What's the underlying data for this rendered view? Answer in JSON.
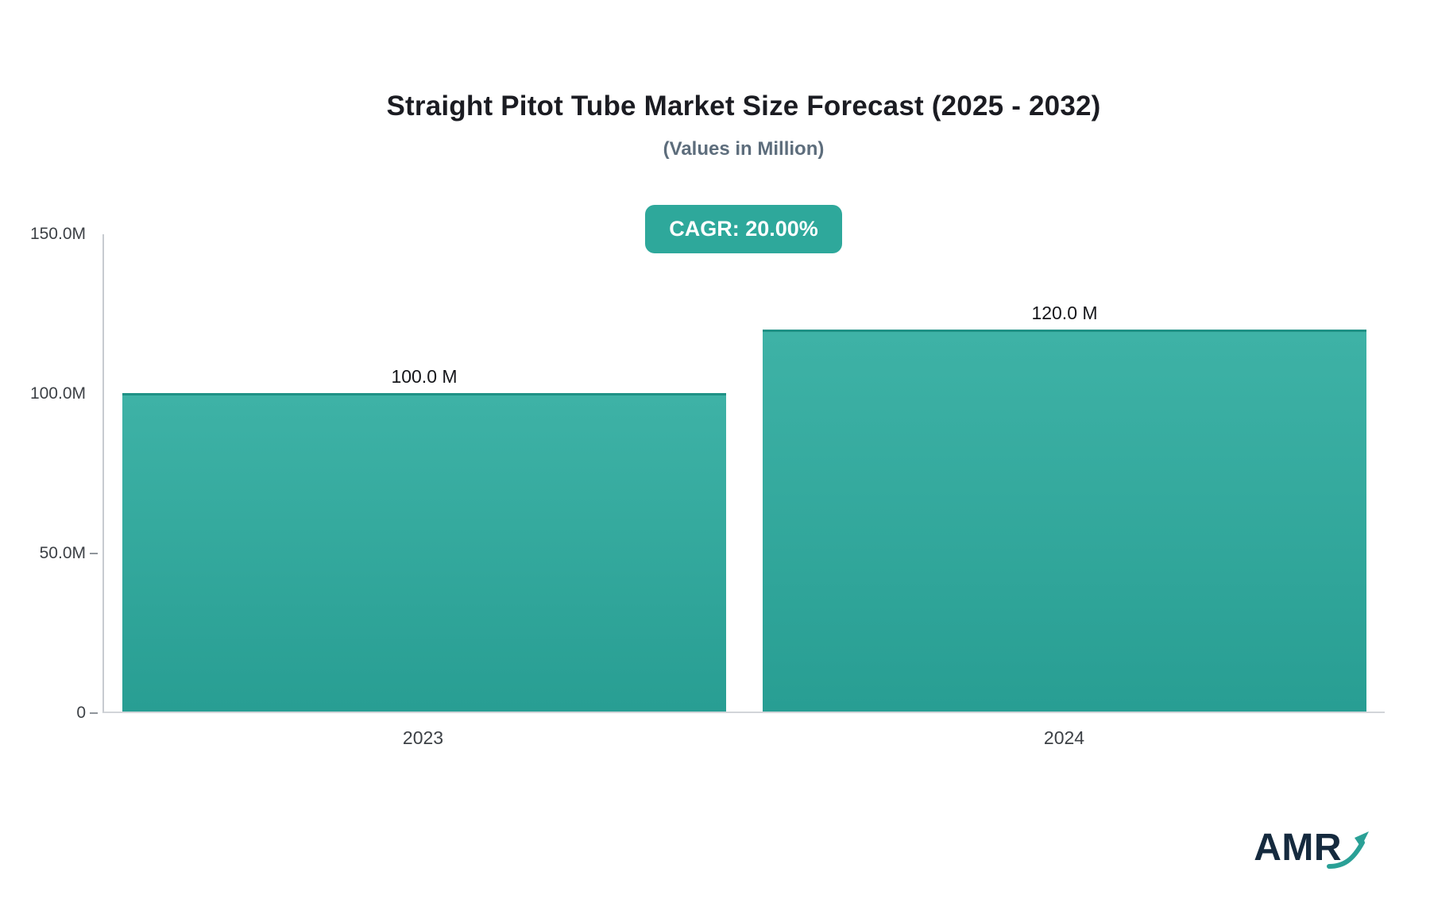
{
  "header": {
    "title": "Straight Pitot Tube Market Size Forecast (2025 - 2032)",
    "subtitle": "(Values in Million)"
  },
  "badge": {
    "label": "CAGR: 20.00%"
  },
  "chart_data": {
    "type": "bar",
    "title": "Straight Pitot Tube Market Size Forecast (2025 - 2032)",
    "subtitle": "(Values in Million)",
    "categories": [
      "2023",
      "2024"
    ],
    "values": [
      100.0,
      120.0
    ],
    "value_labels": [
      "100.0 M",
      "120.0 M"
    ],
    "xlabel": "",
    "ylabel": "",
    "ylim": [
      0,
      150
    ],
    "yticks": [
      {
        "value": 0,
        "label": "0",
        "tick": true
      },
      {
        "value": 50,
        "label": "50.0M",
        "tick": true
      },
      {
        "value": 100,
        "label": "100.0M",
        "tick": false
      },
      {
        "value": 150,
        "label": "150.0M",
        "tick": false
      }
    ],
    "grid": false,
    "legend": "none"
  },
  "colors": {
    "accent": "#2ea89b",
    "bar_gradient_top": "#3eb2a6",
    "bar_gradient_bottom": "#289e93",
    "bar_top_edge": "#1f9185",
    "title_text": "#1b1c22",
    "subtitle_text": "#5d6d7c",
    "logo_text": "#152a3e"
  },
  "logo": {
    "text": "AMR"
  },
  "icons": {
    "trend_arrow": "↗"
  }
}
